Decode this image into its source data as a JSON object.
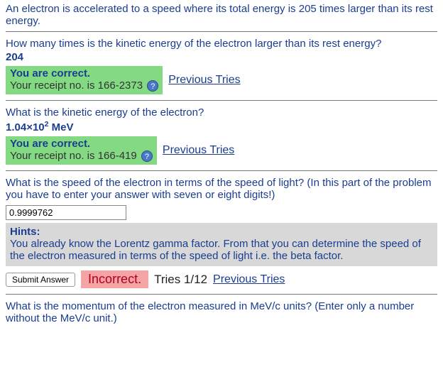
{
  "intro": "An electron is accelerated to a speed where its total energy is 205 times larger than its rest energy.",
  "parts": [
    {
      "question": "How many times is the kinetic energy of the electron larger than its rest energy?",
      "answer_display": "204",
      "correct_head": "You are correct.",
      "receipt": "Your receipt no. is 166-2373",
      "prev_tries": "Previous Tries"
    },
    {
      "question": "What is the kinetic energy of the electron?",
      "answer_coef": "1.04×10",
      "answer_exp": "2",
      "answer_unit": " MeV",
      "correct_head": "You are correct.",
      "receipt": "Your receipt no. is 166-419",
      "prev_tries": "Previous Tries"
    },
    {
      "question": "What is the speed of the electron in terms of the speed of light? (In this part of the problem you have to enter your answer with seven or eight digits!)",
      "input_value": "0.9999762",
      "hints_head": "Hints:",
      "hints_body": "You already know the Lorentz gamma factor. From that you can determine the speed of the electron measured in terms of the speed of light i.e. the beta factor.",
      "submit_label": "Submit Answer",
      "incorrect_label": "Incorrect.",
      "tries_text": "Tries 1/12",
      "prev_tries": "Previous Tries"
    },
    {
      "question": "What is the momentum of the electron measured in MeV/c units? (Enter only a number without the MeV/c unit.)"
    }
  ],
  "colors": {
    "brand": "#1a3d8f",
    "correct_bg": "#83da83",
    "incorrect_bg": "#f5a3a3",
    "incorrect_fg": "#b00020",
    "hints_bg": "#d8d8d8"
  }
}
